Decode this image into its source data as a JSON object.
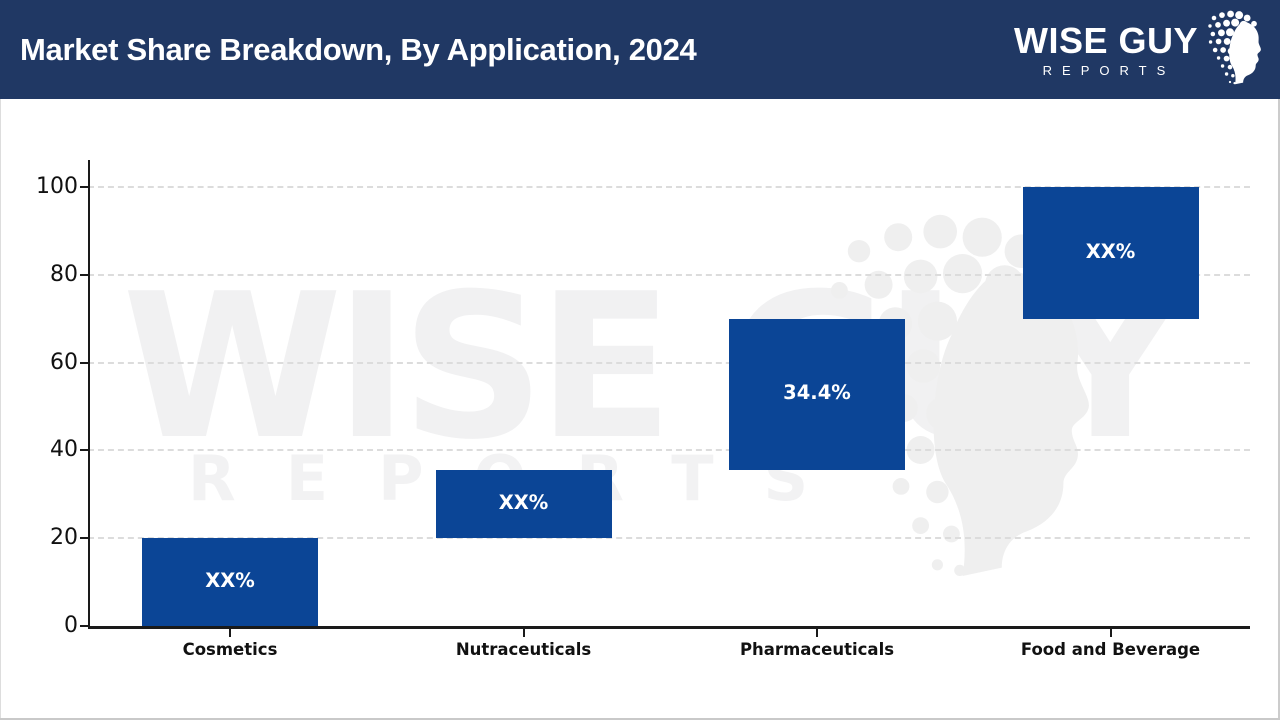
{
  "header": {
    "title": "Market Share Breakdown, By Application, 2024",
    "logo": {
      "line1": "WISE GUY",
      "line2": "REPORTS"
    }
  },
  "watermark": {
    "line1": "WISE GUY",
    "line2": "REPORTS"
  },
  "chart_data": {
    "type": "bar",
    "subtype": "waterfall",
    "title": "Market Share Breakdown, By Application, 2024",
    "categories": [
      "Cosmetics",
      "Nutraceuticals",
      "Pharmaceuticals",
      "Food and Beverage"
    ],
    "segments": [
      {
        "category": "Cosmetics",
        "start": 0,
        "end": 20,
        "label": "XX%"
      },
      {
        "category": "Nutraceuticals",
        "start": 20,
        "end": 35.6,
        "label": "XX%"
      },
      {
        "category": "Pharmaceuticals",
        "start": 35.6,
        "end": 70,
        "label": "34.4%"
      },
      {
        "category": "Food and Beverage",
        "start": 70,
        "end": 100,
        "label": "XX%"
      }
    ],
    "yticks": [
      0,
      20,
      40,
      60,
      80,
      100
    ],
    "ylim": [
      0,
      106
    ],
    "xlabel": "",
    "ylabel": "",
    "grid": "horizontal-dashed",
    "legend": "none",
    "bar_color": "#0b4596",
    "bar_label_color": "#ffffff"
  },
  "colors": {
    "header_bg": "#203864",
    "bar": "#0b4596",
    "axis": "#1a1a1a",
    "gridline": "#dcdcdc",
    "watermark": "#f1f1f2",
    "page_border": "#cccccc"
  }
}
